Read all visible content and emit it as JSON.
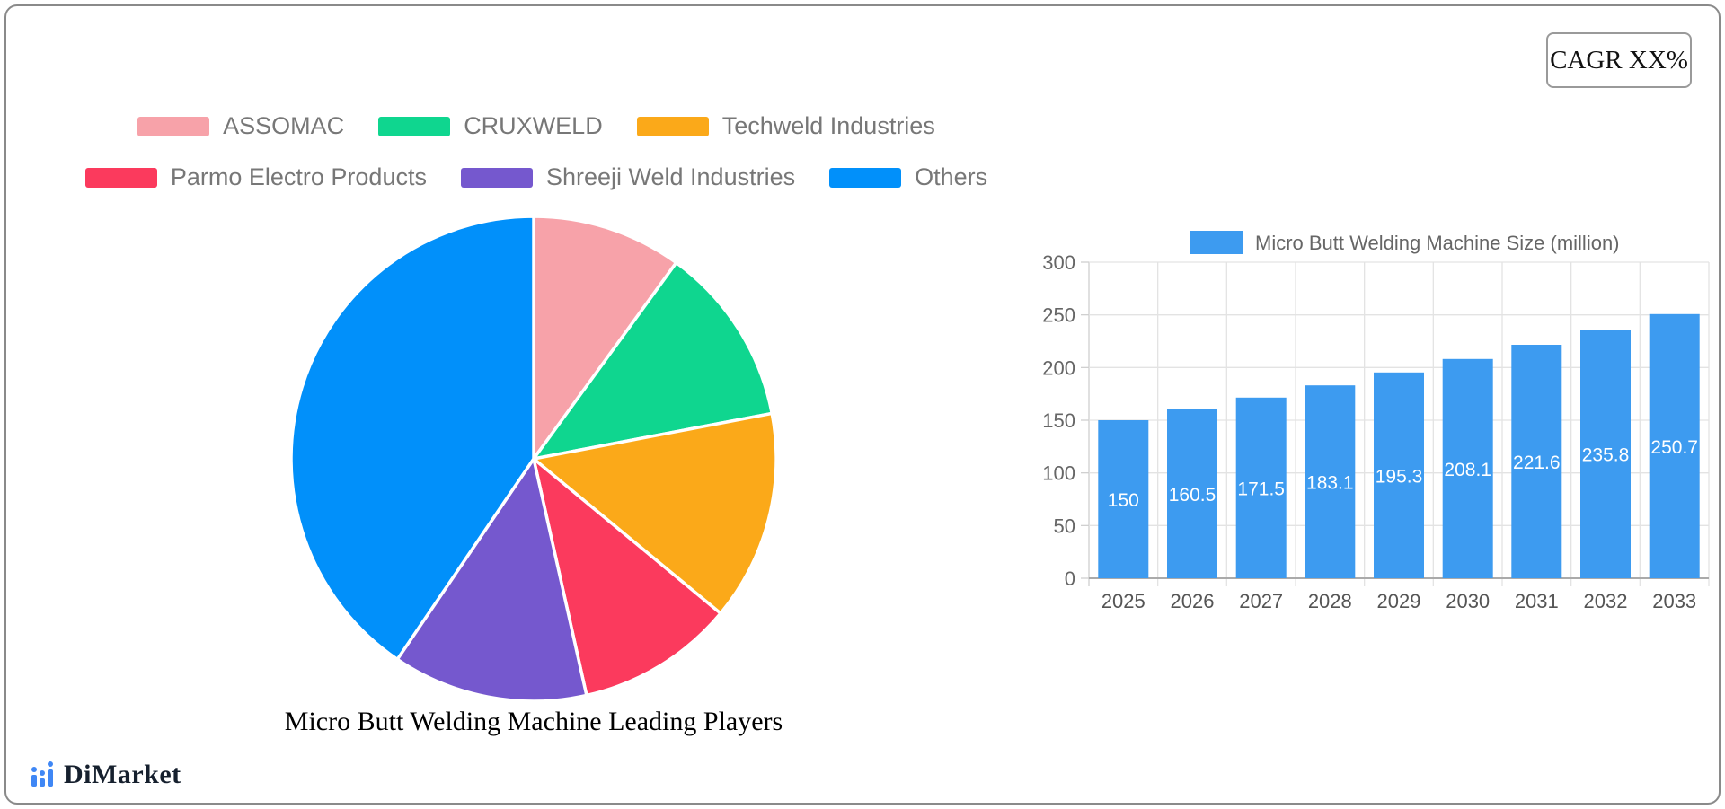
{
  "cagr_badge": "CAGR XX%",
  "branding": {
    "name": "DiMarket",
    "icon": "bar-chart-logo-icon",
    "icon_color": "#3f87f5",
    "text_color": "#16202e"
  },
  "chart_data": [
    {
      "type": "pie",
      "title": "Micro Butt Welding Machine Leading Players",
      "labels": [
        "ASSOMAC",
        "CRUXWELD",
        "Techweld Industries",
        "Parmo Electro Products",
        "Shreeji Weld Industries",
        "Others"
      ],
      "values": [
        10,
        12,
        14,
        10.5,
        13,
        40.5
      ],
      "colors": [
        "#F7A2A9",
        "#0FD68F",
        "#FBA919",
        "#FB3A5D",
        "#7558CE",
        "#0190FA"
      ],
      "start_angle_deg": 0,
      "direction": "clockwise",
      "slice_border_color": "#ffffff",
      "legend_position": "top",
      "legend_rows": [
        [
          0,
          1,
          2
        ],
        [
          3,
          4,
          5
        ]
      ]
    },
    {
      "type": "bar",
      "series_name": "Micro Butt Welding Machine Size (million)",
      "categories": [
        "2025",
        "2026",
        "2027",
        "2028",
        "2029",
        "2030",
        "2031",
        "2032",
        "2033"
      ],
      "values": [
        150,
        160.5,
        171.5,
        183.1,
        195.3,
        208.1,
        221.6,
        235.8,
        250.7
      ],
      "bar_color": "#3D9BF0",
      "value_label_color": "#ffffff",
      "ylim": [
        0,
        300
      ],
      "yticks": [
        0,
        50,
        100,
        150,
        200,
        250,
        300
      ],
      "grid": true,
      "gridline_color": "#e3e3e3",
      "axis_line_color": "#aaaaaa",
      "tick_label_color": "#666666",
      "legend_position": "top"
    }
  ]
}
